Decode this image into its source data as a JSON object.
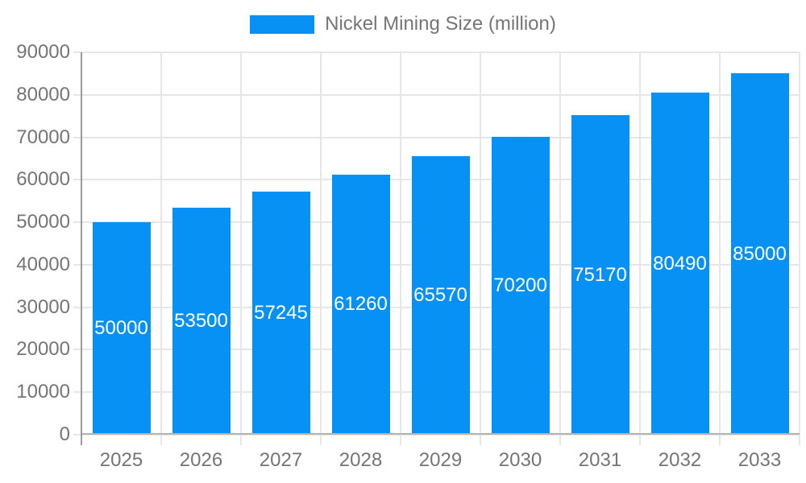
{
  "legend": {
    "label": "Nickel Mining Size (million)"
  },
  "chart_data": {
    "type": "bar",
    "title": "Nickel Mining Size (million)",
    "categories": [
      "2025",
      "2026",
      "2027",
      "2028",
      "2029",
      "2030",
      "2031",
      "2032",
      "2033"
    ],
    "values": [
      50000,
      53500,
      57245,
      61260,
      65570,
      70200,
      75170,
      80490,
      85000
    ],
    "xlabel": "",
    "ylabel": "",
    "ylim": [
      0,
      90000
    ],
    "yticks": [
      0,
      10000,
      20000,
      30000,
      40000,
      50000,
      60000,
      70000,
      80000,
      90000
    ],
    "grid": true,
    "legend_position": "top",
    "bar_labels_shown": true,
    "colors": {
      "bar": "#0891f5",
      "grid": "#e6e6e6",
      "x_axis_line": "#b3b3b3",
      "y_axis_line": "#9a9a9a",
      "axis_text": "#757575",
      "bar_label_text": "#ffffff"
    }
  }
}
